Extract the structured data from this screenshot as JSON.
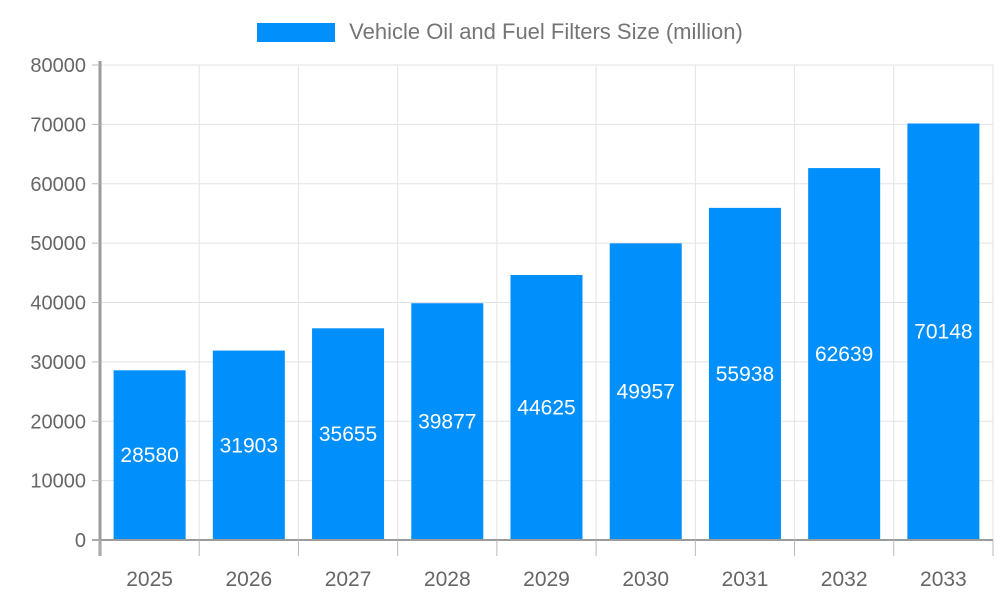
{
  "legend": {
    "label": "Vehicle Oil and Fuel Filters Size (million)"
  },
  "colors": {
    "bar": "#008FFB",
    "bar_label_text": "#FFFFFF",
    "legend_text": "#757575",
    "axis_label_text": "#666666",
    "gridline": "#E3E3E3",
    "axis_line": "#9B9B9B",
    "tick": "#B9B9B9",
    "background": "#FFFFFF"
  },
  "chart_data": {
    "type": "bar",
    "title": "Vehicle Oil and Fuel Filters Size (million)",
    "categories": [
      "2025",
      "2026",
      "2027",
      "2028",
      "2029",
      "2030",
      "2031",
      "2032",
      "2033"
    ],
    "series": [
      {
        "name": "Vehicle Oil and Fuel Filters Size (million)",
        "values": [
          28580,
          31903,
          35655,
          39877,
          44625,
          49957,
          55938,
          62639,
          70148
        ]
      }
    ],
    "value_labels": [
      "28580",
      "31903",
      "35655",
      "39877",
      "44625",
      "49957",
      "55938",
      "62639",
      "70148"
    ],
    "xlabel": "",
    "ylabel": "",
    "ylim": [
      0,
      80000
    ],
    "ytick_interval": 10000,
    "ytick_labels": [
      "0",
      "10000",
      "20000",
      "30000",
      "40000",
      "50000",
      "60000",
      "70000",
      "80000"
    ],
    "grid": true,
    "legend_position": "top",
    "value_labels_position": "center-inside"
  }
}
